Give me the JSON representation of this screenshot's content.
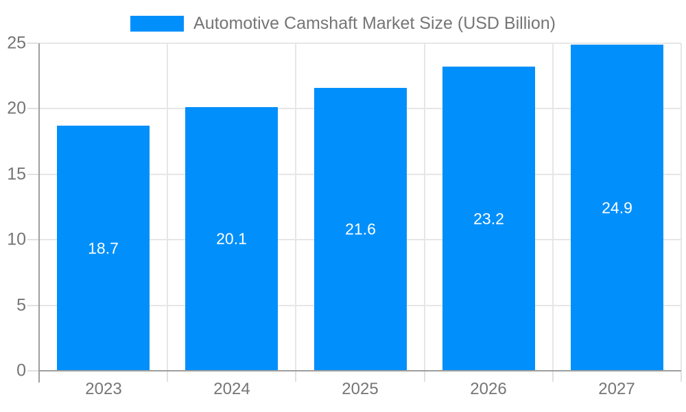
{
  "chart_data": {
    "type": "bar",
    "title": "Automotive Camshaft Market Size (USD Billion)",
    "legend": {
      "position": "top",
      "entries": [
        "Automotive Camshaft Market Size (USD Billion)"
      ]
    },
    "categories": [
      "2023",
      "2024",
      "2025",
      "2026",
      "2027"
    ],
    "values": [
      18.7,
      20.1,
      21.6,
      23.2,
      24.9
    ],
    "bar_labels": [
      "18.7",
      "20.1",
      "21.6",
      "23.2",
      "24.9"
    ],
    "xlabel": "",
    "ylabel": "",
    "ylim": [
      0,
      25
    ],
    "y_ticks": [
      0,
      5,
      10,
      15,
      20,
      25
    ],
    "grid": true,
    "colors": {
      "bar": "#008FFB",
      "bar_label_text": "#ffffff",
      "axis_line": "#9e9e9e",
      "gridline": "#e6e6e6",
      "tick_text": "#757575",
      "legend_text": "#757575",
      "background": "#ffffff"
    }
  }
}
